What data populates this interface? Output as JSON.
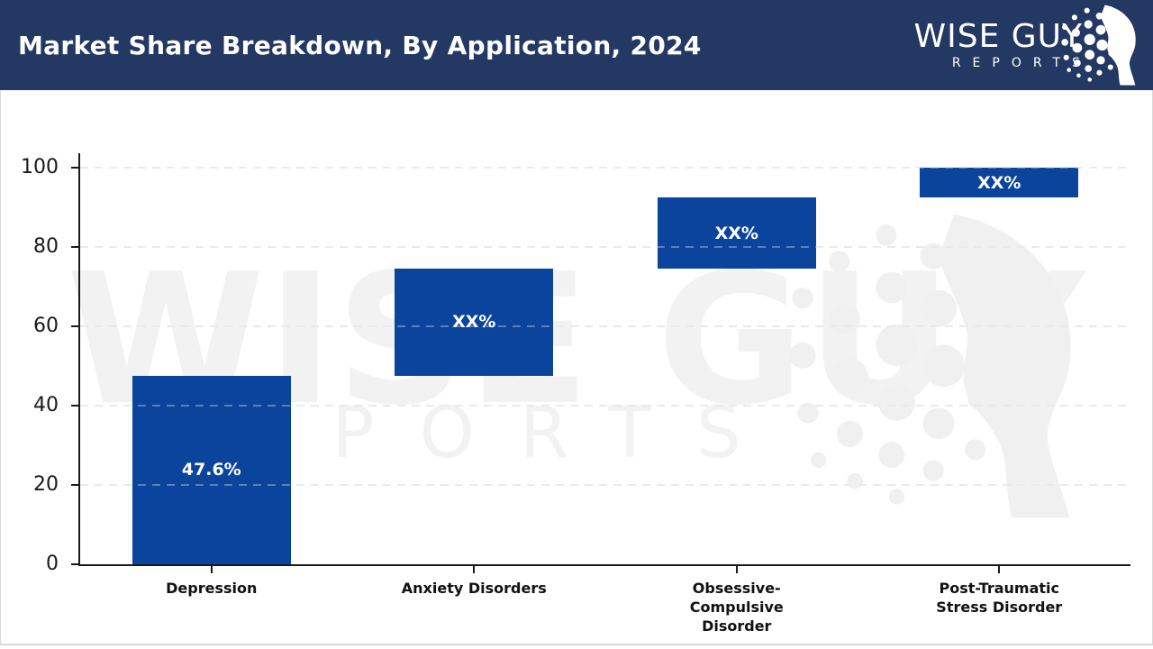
{
  "header": {
    "title": "Market Share Breakdown, By Application, 2024",
    "logo": {
      "line1": "WISE GUY",
      "line2": "REPORTS"
    }
  },
  "watermark": {
    "line1": "WISE GUY",
    "line2": "REPORTS"
  },
  "chart_data": {
    "type": "bar",
    "subtype": "waterfall",
    "title": "Market Share Breakdown, By Application, 2024",
    "categories": [
      "Depression",
      "Anxiety Disorders",
      "Obsessive-\nCompulsive\nDisorder",
      "Post-Traumatic\nStress Disorder"
    ],
    "segments": [
      {
        "category": "Depression",
        "start": 0,
        "end": 47.6,
        "label": "47.6%"
      },
      {
        "category": "Anxiety Disorders",
        "start": 47.6,
        "end": 74.5,
        "label": "XX%"
      },
      {
        "category": "Obsessive-Compulsive Disorder",
        "start": 74.5,
        "end": 92.5,
        "label": "XX%"
      },
      {
        "category": "Post-Traumatic Stress Disorder",
        "start": 92.5,
        "end": 100,
        "label": "XX%"
      }
    ],
    "xlabel": "",
    "ylabel": "",
    "ylim": [
      0,
      100
    ],
    "yticks": [
      0,
      20,
      40,
      60,
      80,
      100
    ],
    "grid": "horizontal-dashed",
    "legend": "none"
  },
  "colors": {
    "header_bg": "#233862",
    "bar": "#0a449c",
    "bar_label": "#ffffff",
    "grid": "#e0e0e0",
    "axis": "#1a1a1a",
    "watermark": "#f2f2f2",
    "page_bg": "#ffffff",
    "border": "#d9d9d9"
  }
}
